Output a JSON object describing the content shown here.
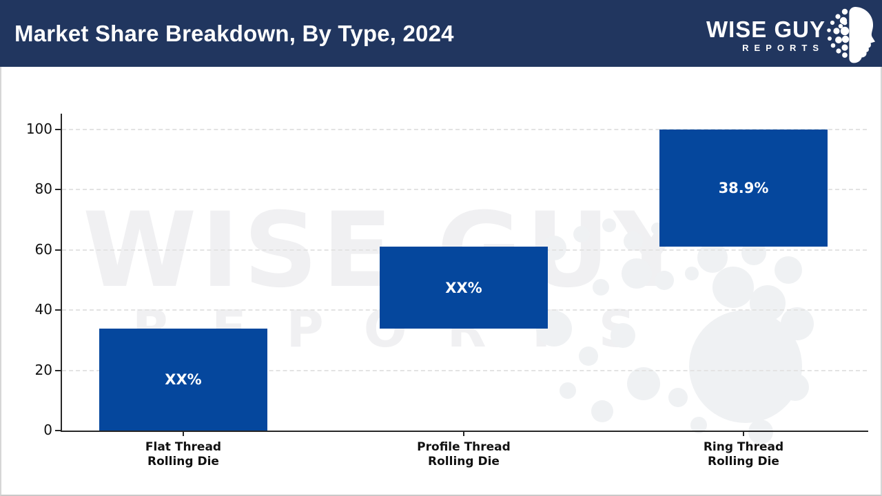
{
  "header": {
    "title": "Market Share Breakdown, By Type, 2024",
    "bg_color": "#21365f",
    "logo": {
      "brand": "WISE GUY",
      "sub": "REPORTS",
      "face_icon": "dotted-face-profile"
    }
  },
  "watermark": {
    "brand": "WISE GUY",
    "sub": "REPORTS"
  },
  "chart_data": {
    "type": "bar",
    "subtype": "floating-waterfall",
    "title": "Market Share Breakdown, By Type, 2024",
    "categories": [
      {
        "name": "Flat Thread Rolling Die",
        "lines": [
          "Flat Thread",
          "Rolling Die"
        ]
      },
      {
        "name": "Profile Thread Rolling Die",
        "lines": [
          "Profile Thread",
          "Rolling Die"
        ]
      },
      {
        "name": "Ring Thread Rolling Die",
        "lines": [
          "Ring Thread",
          "Rolling Die"
        ]
      }
    ],
    "segments": [
      {
        "category": "Flat Thread Rolling Die",
        "start": 0,
        "end": 33.8,
        "label": "XX%"
      },
      {
        "category": "Profile Thread Rolling Die",
        "start": 33.8,
        "end": 61.1,
        "label": "XX%"
      },
      {
        "category": "Ring Thread Rolling Die",
        "start": 61.1,
        "end": 100,
        "label": "38.9%"
      }
    ],
    "ylim": [
      0,
      100
    ],
    "yticks": [
      0,
      20,
      40,
      60,
      80,
      100
    ],
    "xlabel": "",
    "ylabel": "",
    "grid": "horizontal-dashed",
    "legend": "none",
    "bar_color": "#05479d",
    "value_label_color": "#ffffff"
  }
}
